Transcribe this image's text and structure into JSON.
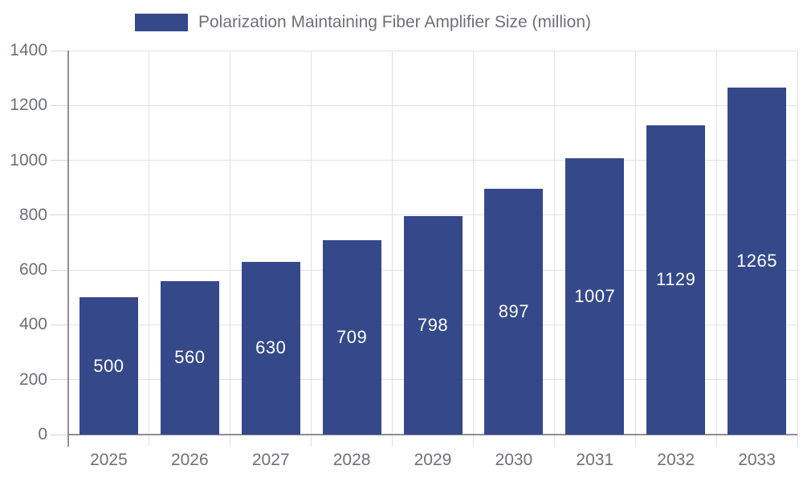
{
  "chart_data": {
    "type": "bar",
    "title": "Polarization Maintaining Fiber Amplifier Size (million)",
    "categories": [
      "2025",
      "2026",
      "2027",
      "2028",
      "2029",
      "2030",
      "2031",
      "2032",
      "2033"
    ],
    "values": [
      500,
      560,
      630,
      709,
      798,
      897,
      1007,
      1129,
      1265
    ],
    "xlabel": "",
    "ylabel": "",
    "ylim": [
      0,
      1400
    ],
    "yticks": [
      0,
      200,
      400,
      600,
      800,
      1000,
      1200,
      1400
    ],
    "grid": true,
    "legend_position": "top-center",
    "value_label_position": "inside-center",
    "colors": {
      "bar": "#35498A",
      "value_label": "#FFFFFF",
      "axis_text": "#6E7079",
      "legend_text": "#6E7079",
      "grid_line": "#E0E1E8",
      "tick_line": "#D4D5DC",
      "axis_line": "#8F9096",
      "background": "#FFFFFF"
    }
  }
}
